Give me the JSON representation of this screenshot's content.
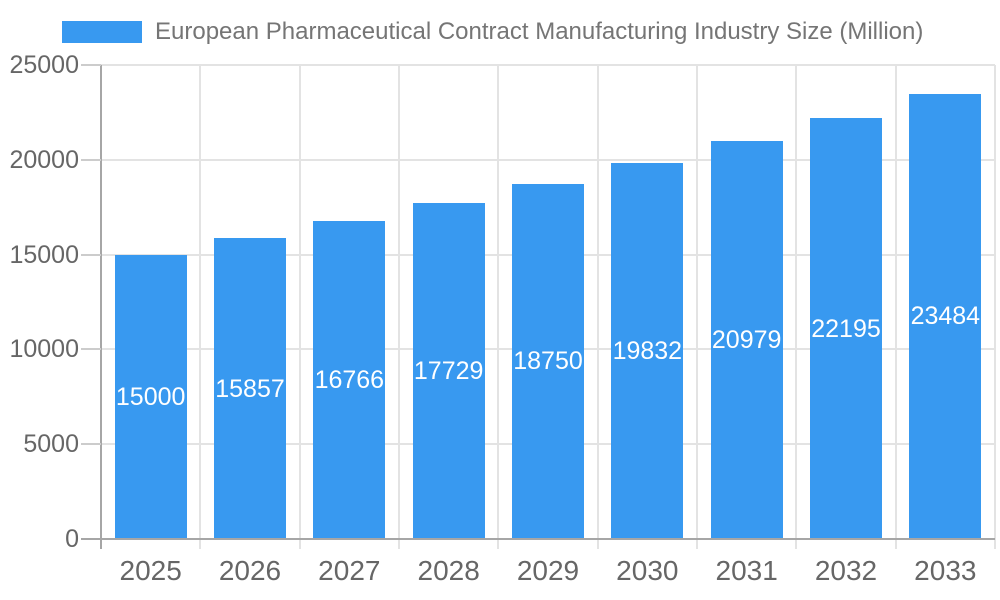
{
  "chart_data": {
    "type": "bar",
    "title": "European Pharmaceutical Contract Manufacturing Industry Size (Million)",
    "categories": [
      "2025",
      "2026",
      "2027",
      "2028",
      "2029",
      "2030",
      "2031",
      "2032",
      "2033"
    ],
    "values": [
      15000,
      15857,
      16766,
      17729,
      18750,
      19832,
      20979,
      22195,
      23484
    ],
    "bar_value_labels": [
      "15000",
      "15857",
      "16766",
      "17729",
      "18750",
      "19832",
      "20979",
      "22195",
      "23484"
    ],
    "xlabel": "",
    "ylabel": "",
    "ylim": [
      0,
      25000
    ],
    "y_ticks": [
      0,
      5000,
      10000,
      15000,
      20000,
      25000
    ],
    "y_tick_labels": [
      "0",
      "5000",
      "10000",
      "15000",
      "20000",
      "25000"
    ],
    "grid": true,
    "legend_position": "top",
    "colors": {
      "bar": "#3899f0",
      "bar_label_text": "#ffffff",
      "title_text": "#757575",
      "axis_text": "#666666",
      "gridline": "#e3e3e3",
      "axis_line": "#a6a6a6",
      "tick_mark": "#cccccc",
      "background": "#ffffff"
    }
  }
}
